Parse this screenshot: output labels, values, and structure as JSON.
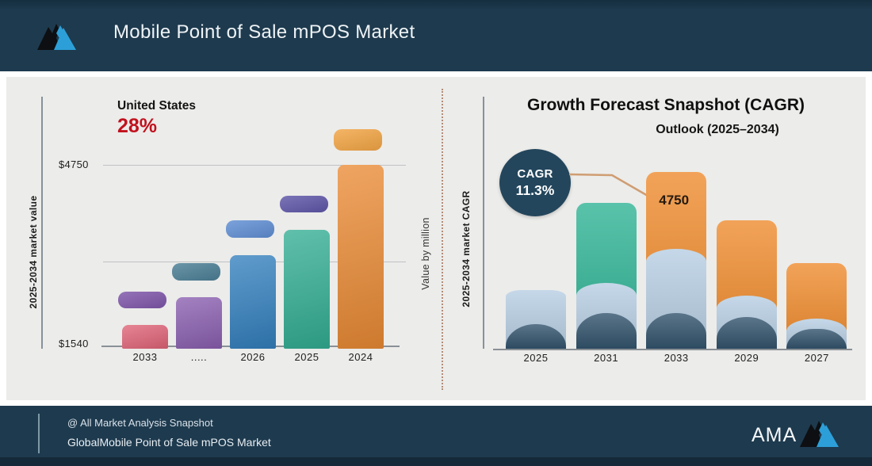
{
  "header": {
    "title": "Mobile Point of Sale mPOS Market"
  },
  "chart_data": [
    {
      "type": "bar",
      "title": "United States",
      "highlight": "28%",
      "ylabel": "2025-2034 market value",
      "ylabel_secondary": "Value by million",
      "yticks": [
        "$4750",
        "$1540"
      ],
      "ylim": [
        1540,
        5600
      ],
      "gridline_values": [
        4750,
        3040
      ],
      "categories": [
        "2033",
        ".....",
        "2026",
        "2025",
        "2024"
      ],
      "values": [
        1900,
        2400,
        3150,
        3600,
        4750
      ],
      "cap_ranges": [
        [
          2200,
          2500
        ],
        [
          2700,
          3000
        ],
        [
          3450,
          3770
        ],
        [
          3900,
          4200
        ],
        [
          5000,
          5390
        ]
      ],
      "bar_colors": [
        "#E06377",
        "#8A5FB0",
        "#3380BE",
        "#33AE93",
        "#EA8B35"
      ],
      "cap_colors": [
        "#7E55A9",
        "#4B7E95",
        "#5F8ED3",
        "#5E56A8",
        "#F2A544"
      ]
    },
    {
      "type": "stacked-bar",
      "title": "Growth Forecast Snapshot (CAGR)",
      "subtitle": "Outlook (2025–2034)",
      "ylabel": "2025-2034 market CAGR",
      "callout": {
        "label": "CAGR",
        "value": "11.3%"
      },
      "categories": [
        "2025",
        "2031",
        "2033",
        "2029",
        "2027"
      ],
      "bars": [
        {
          "label": "2025",
          "segments": [
            {
              "name": "navy",
              "top_pct": 14
            },
            {
              "name": "lightblue",
              "top_pct": 33
            }
          ]
        },
        {
          "label": "2031",
          "segments": [
            {
              "name": "navy",
              "top_pct": 20
            },
            {
              "name": "lightblue",
              "top_pct": 37
            },
            {
              "name": "teal",
              "top_pct": 82
            }
          ]
        },
        {
          "label": "2033",
          "annotation": "4750",
          "segments": [
            {
              "name": "navy",
              "top_pct": 20
            },
            {
              "name": "lightblue",
              "top_pct": 56
            },
            {
              "name": "orange",
              "top_pct": 99
            }
          ]
        },
        {
          "label": "2029",
          "segments": [
            {
              "name": "navy",
              "top_pct": 18
            },
            {
              "name": "lightblue",
              "top_pct": 30
            },
            {
              "name": "orange",
              "top_pct": 72
            }
          ]
        },
        {
          "label": "2027",
          "segments": [
            {
              "name": "navy",
              "top_pct": 11
            },
            {
              "name": "lightblue",
              "top_pct": 17
            },
            {
              "name": "orange",
              "top_pct": 48
            }
          ]
        }
      ],
      "segment_colors": {
        "navy": "#32536C",
        "lightblue": "#B7CEE3",
        "teal": "#30B495",
        "orange": "#EF8C2F"
      }
    }
  ],
  "footer": {
    "line1": "@ All Market Analysis Snapshot",
    "line2": "GlobalMobile Point of Sale mPOS Market",
    "brand": "AMA"
  },
  "colors": {
    "header_bg": "#1E3A4E",
    "panel_bg": "#ECECEA",
    "accent_red": "#C1121F",
    "callout_bg": "#24465C",
    "connector": "#CF9D72"
  }
}
